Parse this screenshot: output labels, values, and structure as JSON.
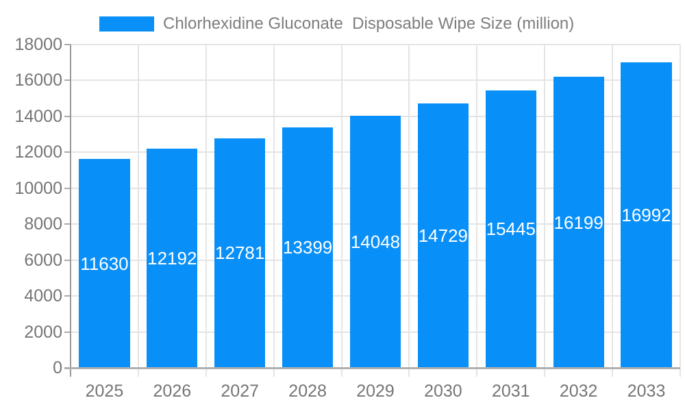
{
  "chart_data": {
    "type": "bar",
    "title": "Chlorhexidine Gluconate  Disposable Wipe Size (million)",
    "legend": [
      "Chlorhexidine Gluconate  Disposable Wipe Size (million)"
    ],
    "legend_position": "top",
    "categories": [
      "2025",
      "2026",
      "2027",
      "2028",
      "2029",
      "2030",
      "2031",
      "2032",
      "2033"
    ],
    "series": [
      {
        "name": "Chlorhexidine Gluconate  Disposable Wipe Size (million)",
        "values": [
          11630,
          12192,
          12781,
          13399,
          14048,
          14729,
          15445,
          16199,
          16992
        ]
      }
    ],
    "xlabel": "",
    "ylabel": "",
    "ylim": [
      0,
      18000
    ],
    "ytick_step": 2000,
    "ytick_labels": [
      "0",
      "2000",
      "4000",
      "6000",
      "8000",
      "10000",
      "12000",
      "14000",
      "16000",
      "18000"
    ],
    "grid": true,
    "bar_label_position": "inside-center",
    "colors": {
      "bar": "#0990f8",
      "bar_label": "#ffffff",
      "tick_label": "#757575",
      "legend_text": "#7d7d7d",
      "grid_line": "#e4e4e4",
      "axis_line": "#9a9a9a",
      "baseline": "#b0b0b0",
      "tick_mark": "#aaaaaa",
      "background": "#ffffff"
    }
  }
}
